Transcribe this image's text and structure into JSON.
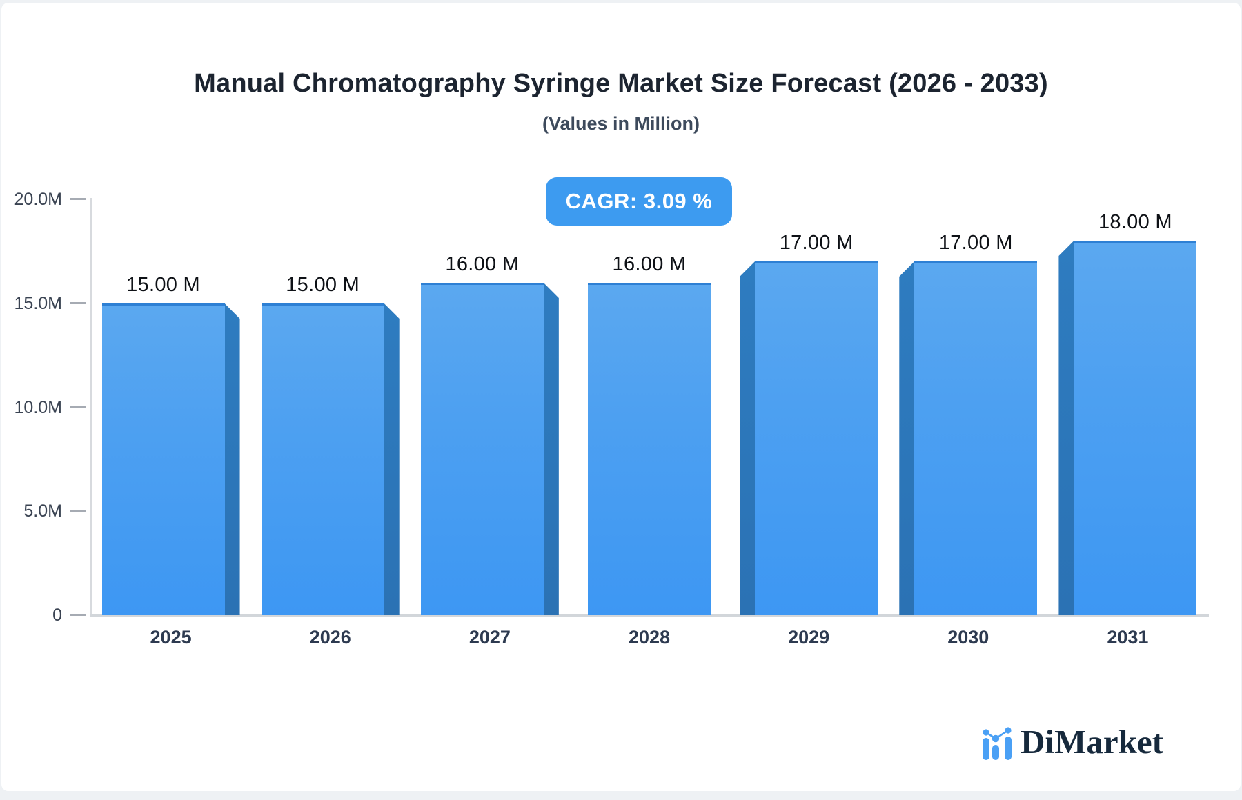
{
  "title": "Manual Chromatography Syringe Market Size Forecast (2026 - 2033)",
  "subtitle": "(Values in Million)",
  "cagr_badge": "CAGR: 3.09 %",
  "logo": {
    "text": "DiMarket",
    "icon": "bar-chart-logo-icon"
  },
  "colors": {
    "badge_blue": "#3d9bf0",
    "bar_gradient_top": "#5ba8f0",
    "bar_gradient_bottom": "#3d97f3",
    "bar_top_edge": "#2e80d4",
    "bar_side_dark": "#2b72b4",
    "axis_line": "#d2d6da",
    "title_text": "#1c2430",
    "subtitle_text": "#3d4a5c",
    "logo_navy": "#16293c",
    "logo_blue": "#4aa0f5"
  },
  "chart_data": {
    "type": "bar",
    "style": "3d-extruded-bars",
    "title": "Manual Chromatography Syringe Market Size Forecast (2026 - 2033)",
    "subtitle": "(Values in Million)",
    "unit": "Million",
    "categories": [
      "2025",
      "2026",
      "2027",
      "2028",
      "2029",
      "2030",
      "2031"
    ],
    "values": [
      15,
      15,
      16,
      16,
      17,
      17,
      18
    ],
    "data_labels": [
      "15.00 M",
      "15.00 M",
      "16.00 M",
      "16.00 M",
      "17.00 M",
      "17.00 M",
      "18.00 M"
    ],
    "ylim": [
      0,
      20
    ],
    "y_ticks": [
      {
        "label": "20.0M",
        "value": 20
      },
      {
        "label": "15.0M",
        "value": 15
      },
      {
        "label": "10.0M",
        "value": 10
      },
      {
        "label": "5.0M",
        "value": 5
      },
      {
        "label": "0",
        "value": 0
      }
    ],
    "legend": "none",
    "grid": "off",
    "annotations": [
      "CAGR: 3.09 %"
    ]
  }
}
